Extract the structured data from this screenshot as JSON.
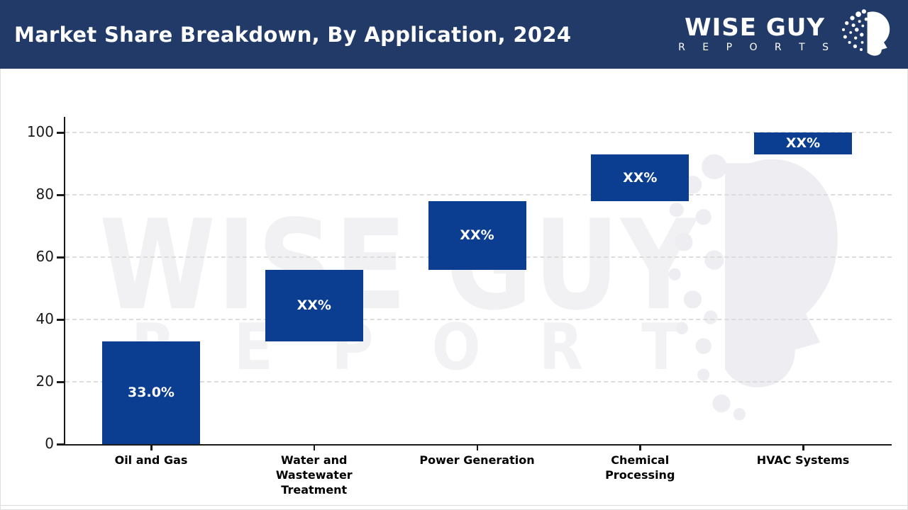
{
  "header": {
    "title": "Market Share Breakdown, By Application, 2024",
    "logo": {
      "line1": "WISE GUY",
      "line2": "R E P O R T S"
    }
  },
  "watermark": {
    "line1": "WISE GUY",
    "line2": "R E P O R T S"
  },
  "colors": {
    "header_bg": "#213a68",
    "bar": "#0b3e91",
    "bar_label": "#ffffff",
    "grid": "#dcdcdc",
    "axis": "#1a1a1a",
    "category_label": "#000000",
    "watermark": "#f1f1f3"
  },
  "chart_data": {
    "type": "bar",
    "variant": "waterfall",
    "title": "Market Share Breakdown, By Application, 2024",
    "categories": [
      "Oil and Gas",
      "Water and\nWastewater\nTreatment",
      "Power Generation",
      "Chemical\nProcessing",
      "HVAC Systems"
    ],
    "series": [
      {
        "name": "Market share cumulative breakdown",
        "segments": [
          {
            "category": "Oil and Gas",
            "start": 0,
            "end": 33,
            "value_label": "33.0%"
          },
          {
            "category": "Water and Wastewater Treatment",
            "start": 33,
            "end": 56,
            "value_label": "XX%"
          },
          {
            "category": "Power Generation",
            "start": 56,
            "end": 78,
            "value_label": "XX%"
          },
          {
            "category": "Chemical Processing",
            "start": 78,
            "end": 93,
            "value_label": "XX%"
          },
          {
            "category": "HVAC Systems",
            "start": 93,
            "end": 100,
            "value_label": "XX%"
          }
        ]
      }
    ],
    "ylim": [
      0,
      100
    ],
    "yticks": [
      0,
      20,
      40,
      60,
      80,
      100
    ],
    "xlabel": "",
    "ylabel": "",
    "grid": "horizontal-dashed",
    "legend": "none"
  }
}
